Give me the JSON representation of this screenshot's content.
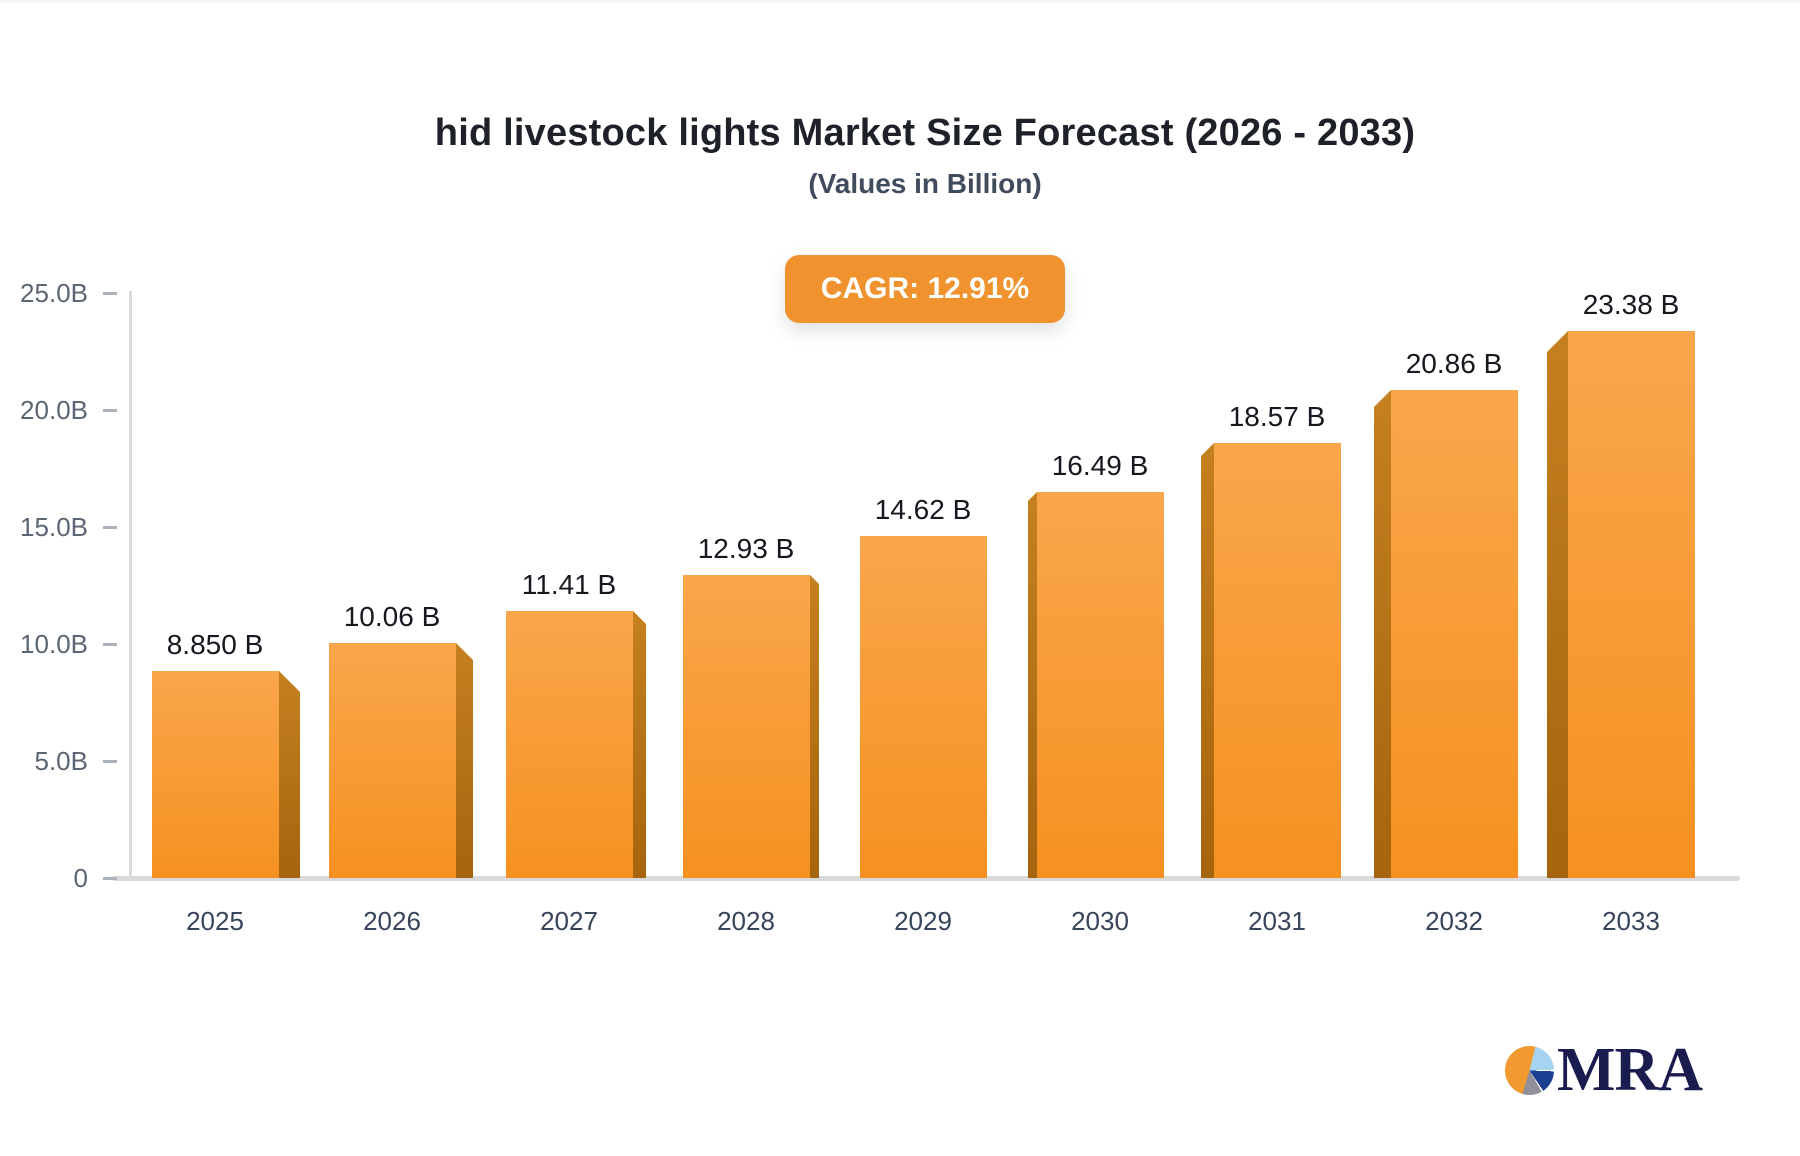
{
  "header": {
    "title": "hid livestock lights Market Size Forecast (2026 - 2033)",
    "subtitle": "(Values in Billion)"
  },
  "chart_data": {
    "type": "bar",
    "title": "hid livestock lights Market Size Forecast (2026 - 2033)",
    "subtitle": "(Values in Billion)",
    "cagr_label": "CAGR: 12.91%",
    "categories": [
      "2025",
      "2026",
      "2027",
      "2028",
      "2029",
      "2030",
      "2031",
      "2032",
      "2033"
    ],
    "values": [
      8.85,
      10.06,
      11.41,
      12.93,
      14.62,
      16.49,
      18.57,
      20.86,
      23.38
    ],
    "value_labels": [
      "8.850 B",
      "10.06 B",
      "11.41 B",
      "12.93 B",
      "14.62 B",
      "16.49 B",
      "18.57 B",
      "20.86 B",
      "23.38 B"
    ],
    "y_ticks": [
      "25.0B",
      "20.0B",
      "15.0B",
      "10.0B",
      "5.0B",
      "0"
    ],
    "y_tick_values": [
      25,
      20,
      15,
      10,
      5,
      0
    ],
    "ylim": [
      0,
      25
    ],
    "xlabel": "",
    "ylabel": "",
    "grid": false,
    "legend": false,
    "bar_style": "3d-perspective-center-vanishing"
  },
  "logo": {
    "text": "MRA",
    "icon": "pie-chart-icon"
  },
  "colors": {
    "bar_face_top": "#F9A64B",
    "bar_face_bottom": "#F69121",
    "bar_side_top": "#C5801F",
    "bar_side_bottom": "#A5650E",
    "badge_bg": "#F0922D",
    "title_text": "#1E2128",
    "subtitle_text": "#404C5E",
    "value_text": "#15181E",
    "year_text": "#36455A",
    "axis_text": "#5B6675",
    "axis_line": "#D9D9D9",
    "logo_navy": "#1A1B4E",
    "logo_orange": "#F19A30",
    "logo_lightblue": "#A7D3F3",
    "logo_blue": "#1C3E90",
    "logo_gray": "#90909A"
  }
}
